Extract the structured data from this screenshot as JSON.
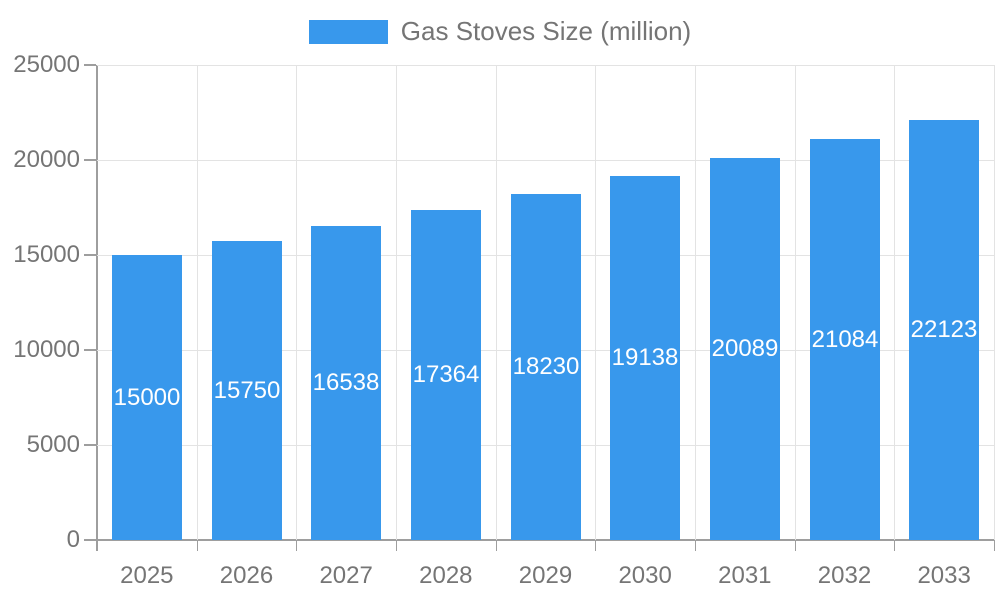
{
  "chart_data": {
    "type": "bar",
    "categories": [
      "2025",
      "2026",
      "2027",
      "2028",
      "2029",
      "2030",
      "2031",
      "2032",
      "2033"
    ],
    "series": [
      {
        "name": "Gas Stoves Size (million)",
        "values": [
          15000,
          15750,
          16538,
          17364,
          18230,
          19138,
          20089,
          21084,
          22123
        ]
      }
    ],
    "title": "",
    "xlabel": "",
    "ylabel": "",
    "ylim": [
      0,
      25000
    ],
    "yticks": [
      0,
      5000,
      10000,
      15000,
      20000,
      25000
    ],
    "grid": true,
    "legend_position": "top",
    "value_labels": "inside-center"
  },
  "colors": {
    "bar": "#3898ec",
    "bar_label": "#ffffff",
    "grid": "#e3e3e3",
    "axis": "#9e9e9e",
    "text": "#757575",
    "background": "#ffffff"
  }
}
